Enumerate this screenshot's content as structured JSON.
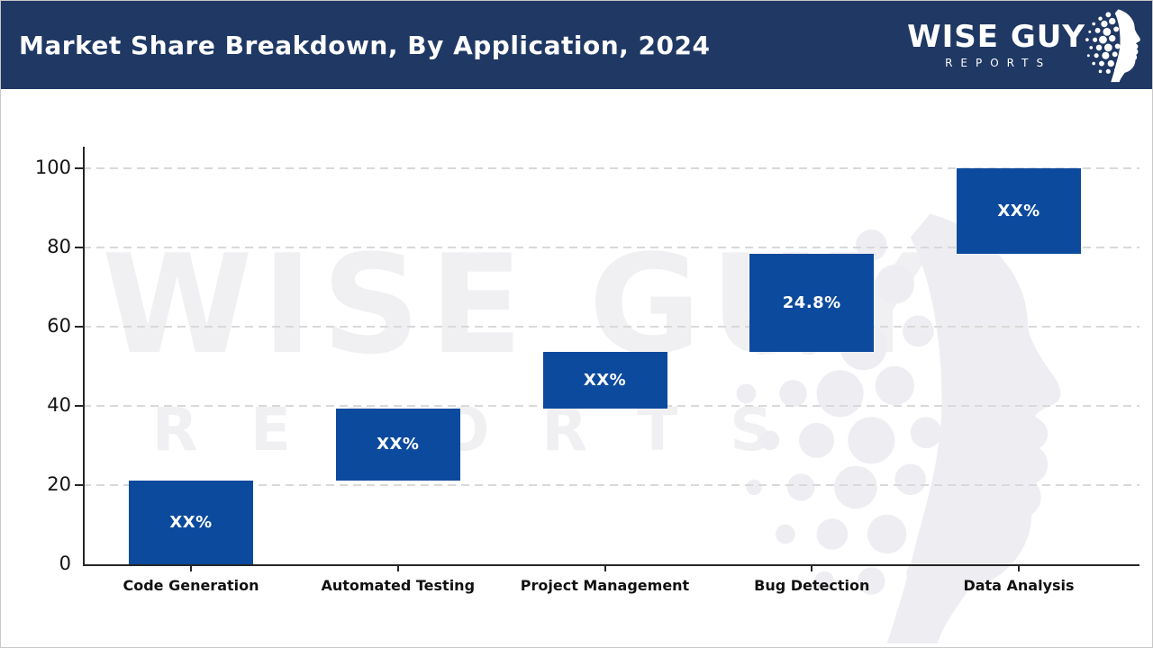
{
  "header": {
    "title": "Market Share Breakdown, By Application, 2024"
  },
  "logo": {
    "name_line": "WISE GUY",
    "sub_line": "REPORTS"
  },
  "watermark": {
    "name_line": "WISE GUY",
    "sub_line": "REPORTS"
  },
  "chart_data": {
    "type": "bar",
    "subtype": "waterfall",
    "title": "Market Share Breakdown, By Application, 2024",
    "categories": [
      "Code Generation",
      "Automated Testing",
      "Project Management",
      "Bug Detection",
      "Data Analysis"
    ],
    "values": [
      21.2,
      18.1,
      14.3,
      24.8,
      21.6
    ],
    "bar_labels": [
      "XX%",
      "XX%",
      "XX%",
      "24.8%",
      "XX%"
    ],
    "cumulative_ranges": [
      [
        0,
        21.2
      ],
      [
        21.2,
        39.3
      ],
      [
        39.3,
        53.6
      ],
      [
        53.6,
        78.4
      ],
      [
        78.4,
        100
      ]
    ],
    "ylim": [
      0,
      100
    ],
    "yticks": [
      0,
      20,
      40,
      60,
      80,
      100
    ],
    "xlabel": "",
    "ylabel": "",
    "grid": "horizontal-dashed",
    "legend": "none",
    "bar_color": "#0c4a9e",
    "bar_label_color": "#ffffff"
  },
  "colors": {
    "header_bg": "#1f3864",
    "bar": "#0c4a9e",
    "grid": "#d9d9d9",
    "axis": "#262626",
    "watermark": "#f0f0f3",
    "page_border": "#c8c8c8"
  }
}
